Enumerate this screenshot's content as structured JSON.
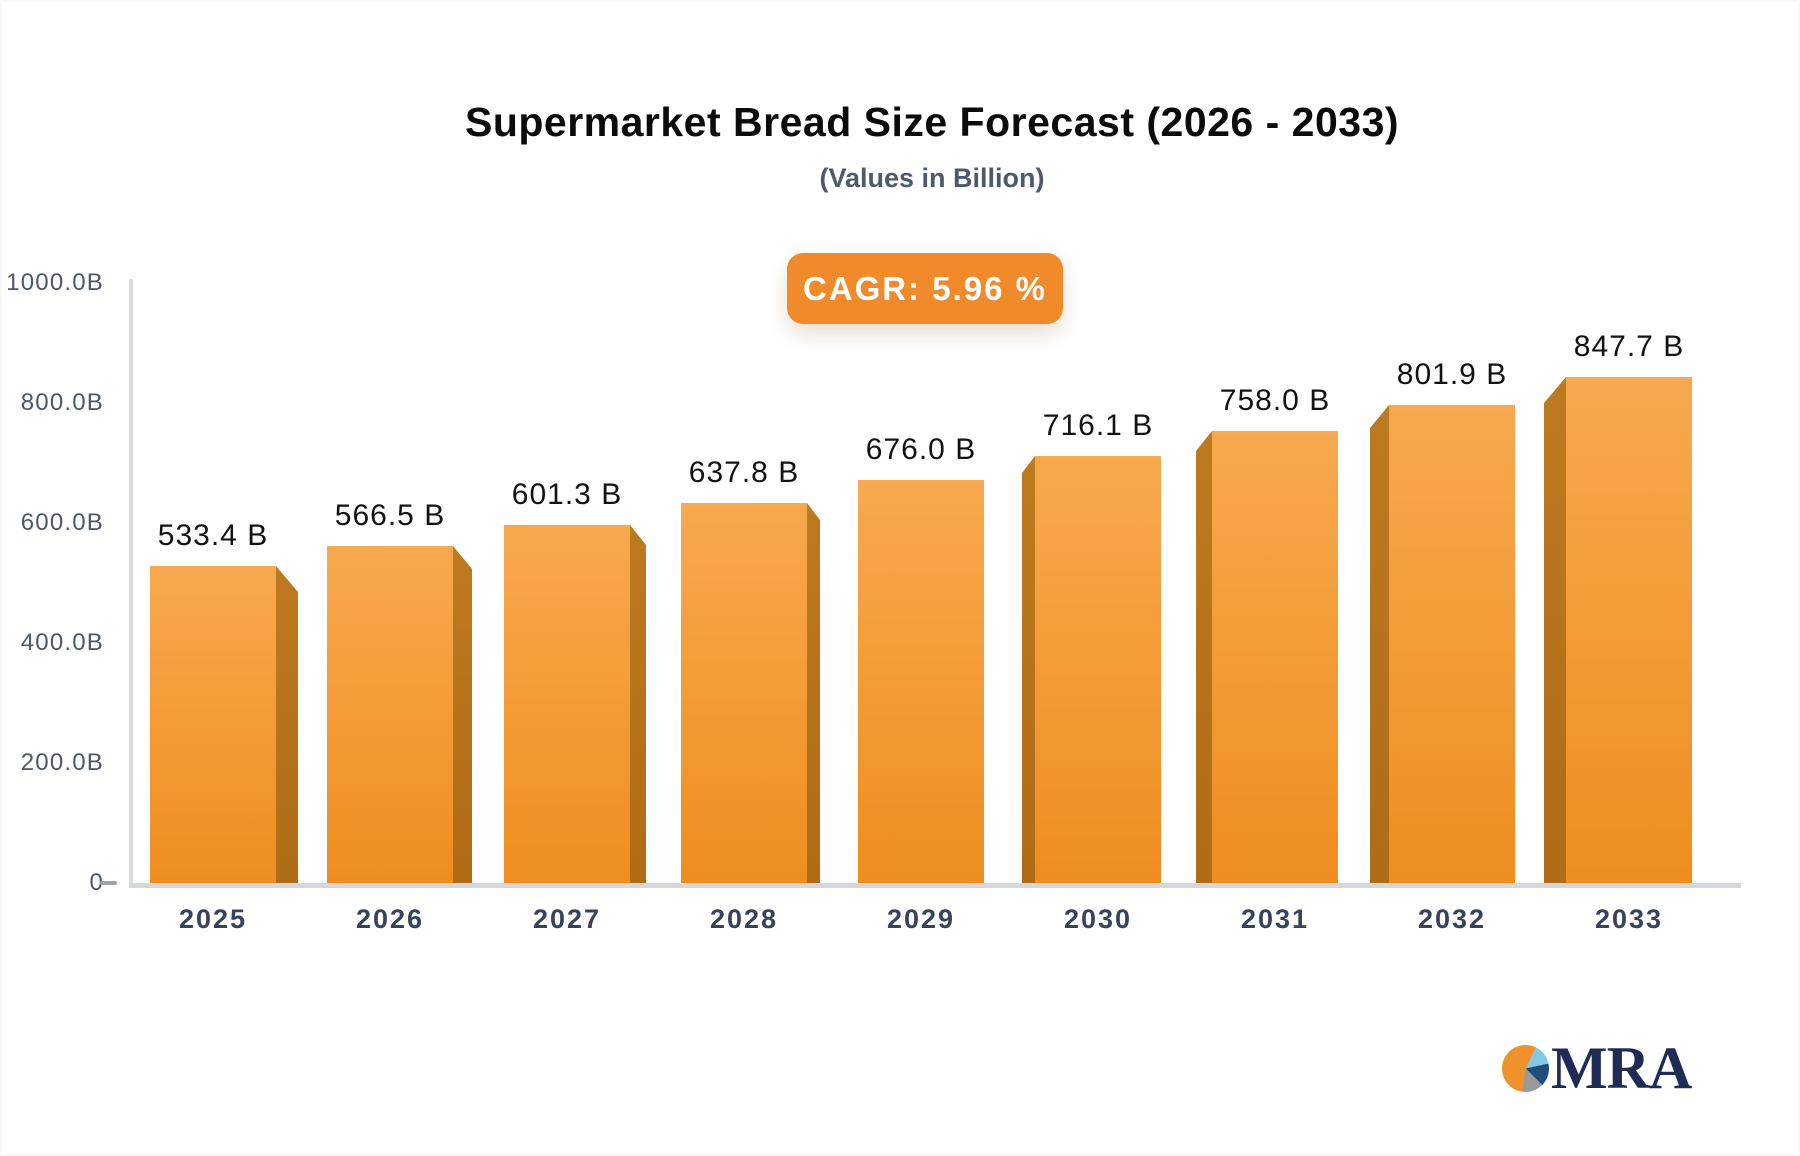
{
  "header": {
    "title": "Supermarket Bread Size Forecast (2026 - 2033)",
    "subtitle": "(Values in Billion)",
    "cagr_label": "CAGR: 5.96 %"
  },
  "chart_data": {
    "type": "bar",
    "title": "Supermarket Bread Size Forecast (2026 - 2033)",
    "subtitle": "(Values in Billion)",
    "annotation": "CAGR: 5.96 %",
    "categories": [
      "2025",
      "2026",
      "2027",
      "2028",
      "2029",
      "2030",
      "2031",
      "2032",
      "2033"
    ],
    "values": [
      533.4,
      566.5,
      601.3,
      637.8,
      676.0,
      716.1,
      758.0,
      801.9,
      847.7
    ],
    "bar_labels": [
      "533.4 B",
      "566.5 B",
      "601.3 B",
      "637.8 B",
      "676.0 B",
      "716.1 B",
      "758.0 B",
      "801.9 B",
      "847.7 B"
    ],
    "xlabel": "",
    "ylabel": "",
    "ylim": [
      0,
      1000
    ],
    "grid": false,
    "legend": "none",
    "y_ticks": [
      {
        "label": "1000.0B",
        "value": 1000
      },
      {
        "label": "800.0B",
        "value": 800
      },
      {
        "label": "600.0B",
        "value": 600
      },
      {
        "label": "400.0B",
        "value": 400
      },
      {
        "label": "200.0B",
        "value": 200
      },
      {
        "label": "0",
        "value": 0
      }
    ]
  },
  "colors": {
    "bar_top": "#f7a94f",
    "bar_bottom": "#ef8d1f",
    "bar_side": "#b06c16",
    "badge_bg": "#f18a2b",
    "axis_text": "#4b5870",
    "logo_navy": "#1d2b55",
    "logo_pie": [
      "#f0922b",
      "#85c7e6",
      "#1f4e7a",
      "#9a9a9a"
    ]
  },
  "footer": {
    "brand": "MRA"
  }
}
